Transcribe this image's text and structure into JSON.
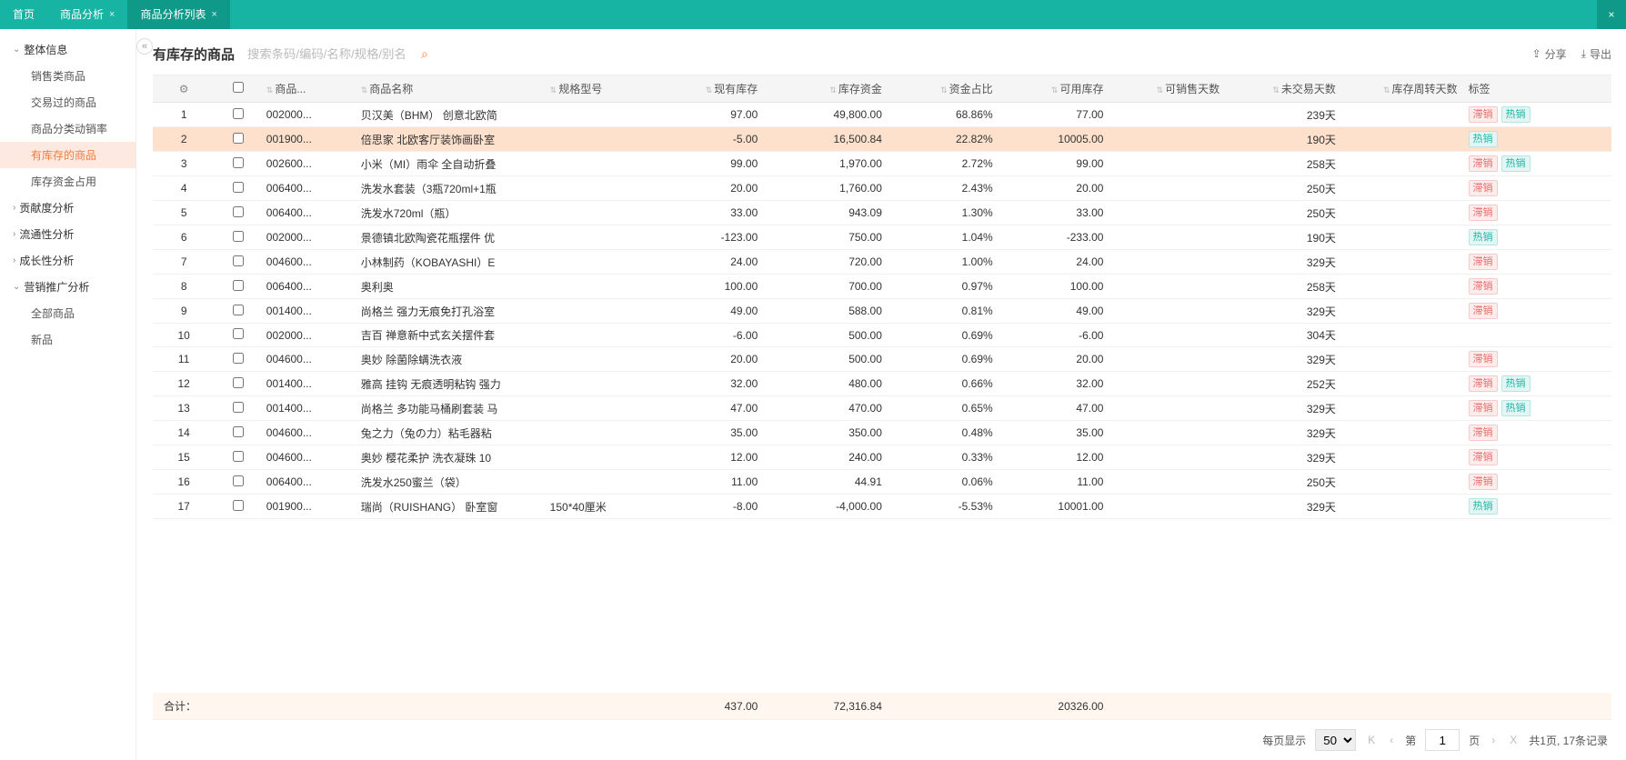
{
  "tabs": {
    "items": [
      {
        "label": "首页",
        "closable": false,
        "active": false
      },
      {
        "label": "商品分析",
        "closable": true,
        "active": false
      },
      {
        "label": "商品分析列表",
        "closable": true,
        "active": true
      }
    ],
    "global_close": "×"
  },
  "sidebar": {
    "groups": [
      {
        "label": "整体信息",
        "expanded": true,
        "items": [
          {
            "label": "销售类商品",
            "active": false
          },
          {
            "label": "交易过的商品",
            "active": false
          },
          {
            "label": "商品分类动销率",
            "active": false
          },
          {
            "label": "有库存的商品",
            "active": true
          },
          {
            "label": "库存资金占用",
            "active": false
          }
        ]
      },
      {
        "label": "贡献度分析",
        "expanded": false,
        "items": []
      },
      {
        "label": "流通性分析",
        "expanded": false,
        "items": []
      },
      {
        "label": "成长性分析",
        "expanded": false,
        "items": []
      },
      {
        "label": "营销推广分析",
        "expanded": true,
        "items": [
          {
            "label": "全部商品",
            "active": false
          },
          {
            "label": "新品",
            "active": false
          }
        ]
      }
    ]
  },
  "page": {
    "title": "有库存的商品",
    "search_placeholder": "搜索条码/编码/名称/规格/别名",
    "share_label": "分享",
    "export_label": "导出"
  },
  "table": {
    "columns": {
      "gear": "⚙",
      "code": "商品...",
      "name": "商品名称",
      "spec": "规格型号",
      "stock": "现有库存",
      "fund": "库存资金",
      "pct": "资金占比",
      "avail": "可用库存",
      "saleDays": "可销售天数",
      "noTxnDays": "未交易天数",
      "turnDays": "库存周转天数",
      "tags": "标签"
    },
    "rows": [
      {
        "idx": 1,
        "code": "002000...",
        "name": "贝汉美（BHM） 创意北欧简",
        "spec": "",
        "stock": "97.00",
        "fund": "49,800.00",
        "pct": "68.86%",
        "avail": "77.00",
        "saleDays": "",
        "noTxnDays": "239天",
        "turnDays": "",
        "tags": [
          "滞销",
          "热销"
        ],
        "highlight": false
      },
      {
        "idx": 2,
        "code": "001900...",
        "name": "倍思家 北欧客厅装饰画卧室",
        "spec": "",
        "stock": "-5.00",
        "fund": "16,500.84",
        "pct": "22.82%",
        "avail": "10005.00",
        "saleDays": "",
        "noTxnDays": "190天",
        "turnDays": "",
        "tags": [
          "热销"
        ],
        "highlight": true
      },
      {
        "idx": 3,
        "code": "002600...",
        "name": "小米（MI）雨伞 全自动折叠",
        "spec": "",
        "stock": "99.00",
        "fund": "1,970.00",
        "pct": "2.72%",
        "avail": "99.00",
        "saleDays": "",
        "noTxnDays": "258天",
        "turnDays": "",
        "tags": [
          "滞销",
          "热销"
        ],
        "highlight": false
      },
      {
        "idx": 4,
        "code": "006400...",
        "name": "洗发水套装（3瓶720ml+1瓶",
        "spec": "",
        "stock": "20.00",
        "fund": "1,760.00",
        "pct": "2.43%",
        "avail": "20.00",
        "saleDays": "",
        "noTxnDays": "250天",
        "turnDays": "",
        "tags": [
          "滞销"
        ],
        "highlight": false
      },
      {
        "idx": 5,
        "code": "006400...",
        "name": "洗发水720ml（瓶）",
        "spec": "",
        "stock": "33.00",
        "fund": "943.09",
        "pct": "1.30%",
        "avail": "33.00",
        "saleDays": "",
        "noTxnDays": "250天",
        "turnDays": "",
        "tags": [
          "滞销"
        ],
        "highlight": false
      },
      {
        "idx": 6,
        "code": "002000...",
        "name": "景德镇北欧陶瓷花瓶摆件 优",
        "spec": "",
        "stock": "-123.00",
        "fund": "750.00",
        "pct": "1.04%",
        "avail": "-233.00",
        "saleDays": "",
        "noTxnDays": "190天",
        "turnDays": "",
        "tags": [
          "热销"
        ],
        "highlight": false
      },
      {
        "idx": 7,
        "code": "004600...",
        "name": "小林制药（KOBAYASHI）E",
        "spec": "",
        "stock": "24.00",
        "fund": "720.00",
        "pct": "1.00%",
        "avail": "24.00",
        "saleDays": "",
        "noTxnDays": "329天",
        "turnDays": "",
        "tags": [
          "滞销"
        ],
        "highlight": false
      },
      {
        "idx": 8,
        "code": "006400...",
        "name": "奥利奥",
        "spec": "",
        "stock": "100.00",
        "fund": "700.00",
        "pct": "0.97%",
        "avail": "100.00",
        "saleDays": "",
        "noTxnDays": "258天",
        "turnDays": "",
        "tags": [
          "滞销"
        ],
        "highlight": false
      },
      {
        "idx": 9,
        "code": "001400...",
        "name": "尚格兰 强力无痕免打孔浴室",
        "spec": "",
        "stock": "49.00",
        "fund": "588.00",
        "pct": "0.81%",
        "avail": "49.00",
        "saleDays": "",
        "noTxnDays": "329天",
        "turnDays": "",
        "tags": [
          "滞销"
        ],
        "highlight": false
      },
      {
        "idx": 10,
        "code": "002000...",
        "name": "吉百 禅意新中式玄关摆件套",
        "spec": "",
        "stock": "-6.00",
        "fund": "500.00",
        "pct": "0.69%",
        "avail": "-6.00",
        "saleDays": "",
        "noTxnDays": "304天",
        "turnDays": "",
        "tags": [],
        "highlight": false
      },
      {
        "idx": 11,
        "code": "004600...",
        "name": "奥妙 除菌除螨洗衣液",
        "spec": "",
        "stock": "20.00",
        "fund": "500.00",
        "pct": "0.69%",
        "avail": "20.00",
        "saleDays": "",
        "noTxnDays": "329天",
        "turnDays": "",
        "tags": [
          "滞销"
        ],
        "highlight": false
      },
      {
        "idx": 12,
        "code": "001400...",
        "name": "雅高 挂钩 无痕透明粘钩 强力",
        "spec": "",
        "stock": "32.00",
        "fund": "480.00",
        "pct": "0.66%",
        "avail": "32.00",
        "saleDays": "",
        "noTxnDays": "252天",
        "turnDays": "",
        "tags": [
          "滞销",
          "热销"
        ],
        "highlight": false
      },
      {
        "idx": 13,
        "code": "001400...",
        "name": "尚格兰 多功能马桶刷套装 马",
        "spec": "",
        "stock": "47.00",
        "fund": "470.00",
        "pct": "0.65%",
        "avail": "47.00",
        "saleDays": "",
        "noTxnDays": "329天",
        "turnDays": "",
        "tags": [
          "滞销",
          "热销"
        ],
        "highlight": false
      },
      {
        "idx": 14,
        "code": "004600...",
        "name": "兔之力（兔の力）粘毛器粘",
        "spec": "",
        "stock": "35.00",
        "fund": "350.00",
        "pct": "0.48%",
        "avail": "35.00",
        "saleDays": "",
        "noTxnDays": "329天",
        "turnDays": "",
        "tags": [
          "滞销"
        ],
        "highlight": false
      },
      {
        "idx": 15,
        "code": "004600...",
        "name": "奥妙 樱花柔护 洗衣凝珠 10",
        "spec": "",
        "stock": "12.00",
        "fund": "240.00",
        "pct": "0.33%",
        "avail": "12.00",
        "saleDays": "",
        "noTxnDays": "329天",
        "turnDays": "",
        "tags": [
          "滞销"
        ],
        "highlight": false
      },
      {
        "idx": 16,
        "code": "006400...",
        "name": "洗发水250蜜兰（袋）",
        "spec": "",
        "stock": "11.00",
        "fund": "44.91",
        "pct": "0.06%",
        "avail": "11.00",
        "saleDays": "",
        "noTxnDays": "250天",
        "turnDays": "",
        "tags": [
          "滞销"
        ],
        "highlight": false
      },
      {
        "idx": 17,
        "code": "001900...",
        "name": "瑞尚（RUISHANG） 卧室窗",
        "spec": "150*40厘米",
        "stock": "-8.00",
        "fund": "-4,000.00",
        "pct": "-5.53%",
        "avail": "10001.00",
        "saleDays": "",
        "noTxnDays": "329天",
        "turnDays": "",
        "tags": [
          "热销"
        ],
        "highlight": false
      }
    ],
    "summary": {
      "label": "合计：",
      "stock": "437.00",
      "fund": "72,316.84",
      "avail": "20326.00"
    },
    "tag_labels": {
      "slow": "滞销",
      "hot": "热销"
    }
  },
  "pager": {
    "per_page_label": "每页显示",
    "page_size": "50",
    "page_prefix": "第",
    "page_value": "1",
    "page_suffix": "页",
    "total_text": "共1页, 17条记录"
  },
  "colors": {
    "brand": "#17b3a3",
    "brand_dark": "#0f9989",
    "active_nav_bg": "#fde9df",
    "active_nav_fg": "#f47b3f",
    "highlight_row": "#fde1cd",
    "summary_bg": "#fff7ef"
  }
}
